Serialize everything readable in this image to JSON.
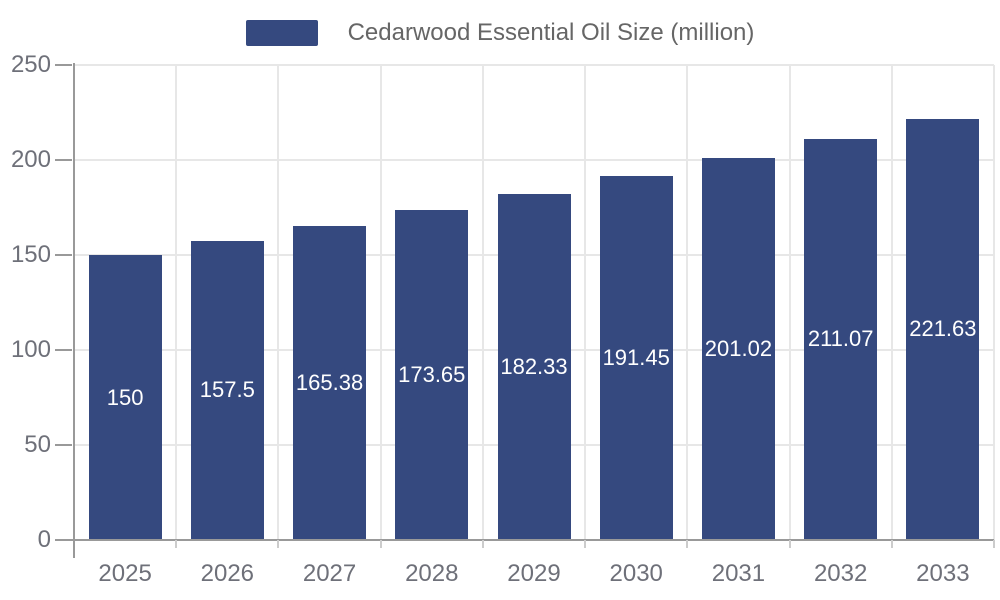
{
  "legend": {
    "label": "Cedarwood Essential Oil Size (million)"
  },
  "colors": {
    "bar": "#35497f",
    "grid": "#e7e7e7",
    "axis": "#999999",
    "x_tick": "#cccccc",
    "axis_label": "#6e7079",
    "value_label": "#ffffff",
    "legend_text": "#666666"
  },
  "chart_data": {
    "type": "bar",
    "title": "Cedarwood Essential Oil Size (million)",
    "categories": [
      "2025",
      "2026",
      "2027",
      "2028",
      "2029",
      "2030",
      "2031",
      "2032",
      "2033"
    ],
    "values": [
      150,
      157.5,
      165.38,
      173.65,
      182.33,
      191.45,
      201.02,
      211.07,
      221.63
    ],
    "value_labels": [
      "150",
      "157.5",
      "165.38",
      "173.65",
      "182.33",
      "191.45",
      "201.02",
      "211.07",
      "221.63"
    ],
    "series_name": "Cedarwood Essential Oil Size (million)",
    "xlabel": "",
    "ylabel": "",
    "ylim": [
      0,
      250
    ],
    "y_ticks": [
      0,
      50,
      100,
      150,
      200,
      250
    ],
    "grid": true,
    "legend_position": "top-center"
  }
}
